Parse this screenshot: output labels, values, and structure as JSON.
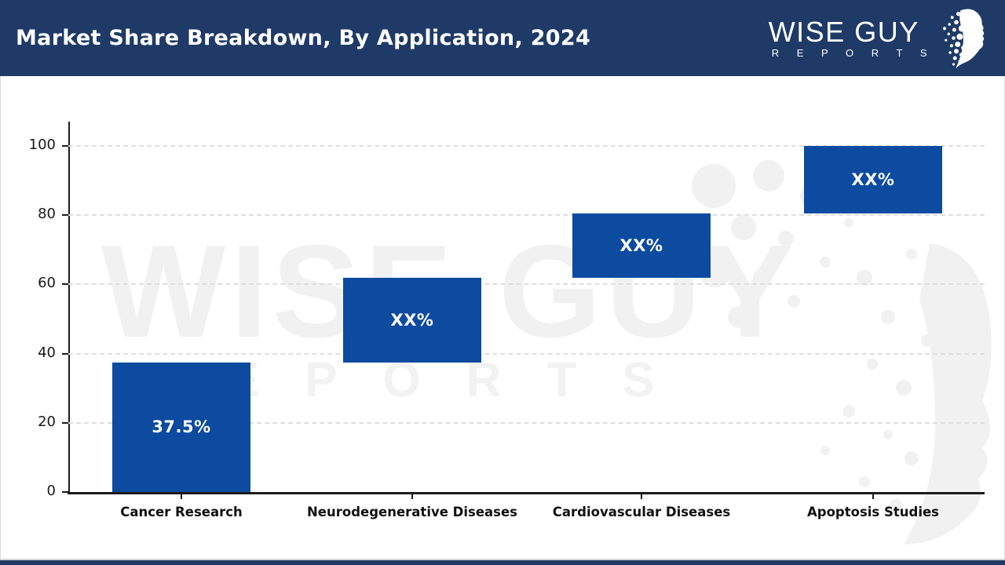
{
  "header": {
    "title": "Market Share Breakdown, By Application, 2024",
    "brand": {
      "name": "WISE GUY",
      "subtitle": "R E P O R T S"
    }
  },
  "icons": {
    "brand_head": "dotted-head-profile-icon",
    "watermark_head": "dotted-head-profile-watermark"
  },
  "watermark": {
    "line1": "WISE GUY",
    "line2": "REPORTS"
  },
  "colors": {
    "header_bg": "#1f3a67",
    "bar": "#0c4ba0",
    "bar_label": "#ffffff",
    "grid": "#dedede",
    "axis": "#1c1c1c",
    "footer_line": "#d5d5d5"
  },
  "chart_data": {
    "type": "bar",
    "subtype": "waterfall",
    "title": "Market Share Breakdown, By Application, 2024",
    "categories": [
      "Cancer Research",
      "Neurodegenerative Diseases",
      "Cardiovascular Diseases",
      "Apoptosis Studies"
    ],
    "bars": [
      {
        "category": "Cancer Research",
        "start": 0,
        "end": 37.5,
        "label": "37.5%"
      },
      {
        "category": "Neurodegenerative Diseases",
        "start": 37.5,
        "end": 62,
        "label": "XX%"
      },
      {
        "category": "Cardiovascular Diseases",
        "start": 62,
        "end": 80.4,
        "label": "XX%"
      },
      {
        "category": "Apoptosis Studies",
        "start": 80.4,
        "end": 100,
        "label": "XX%"
      }
    ],
    "xlabel": "",
    "ylabel": "",
    "ylim": [
      0,
      100
    ],
    "yticks": [
      0,
      20,
      40,
      60,
      80,
      100
    ],
    "grid": "horizontal-dashed",
    "legend": "none"
  }
}
